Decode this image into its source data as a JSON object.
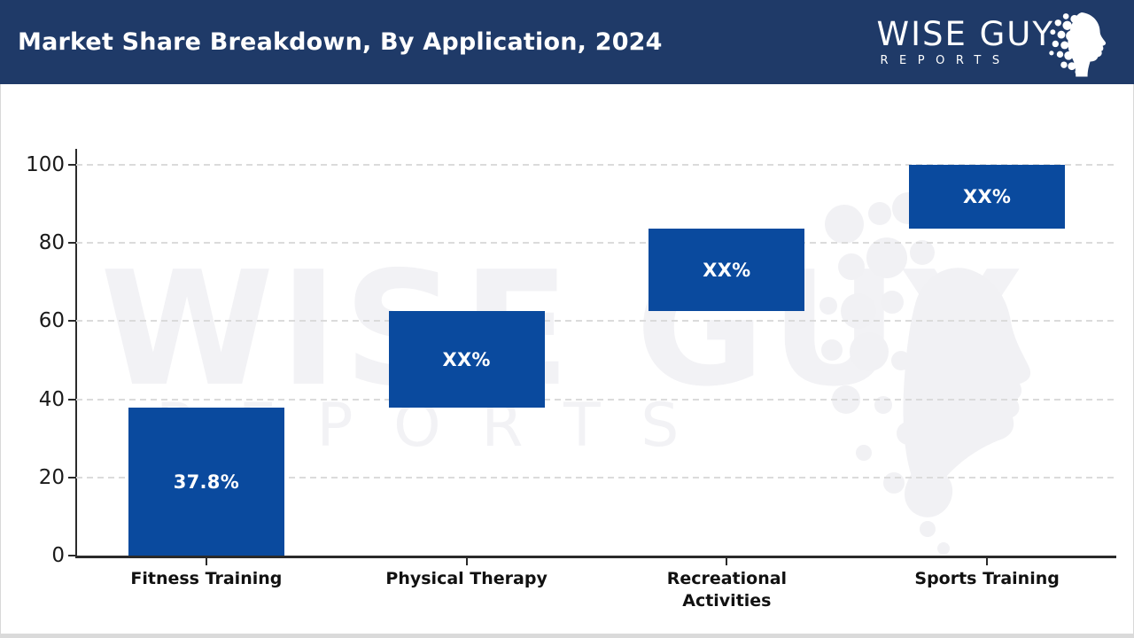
{
  "header": {
    "title": "Market Share Breakdown, By Application, 2024",
    "bg_color": "#1f3a68",
    "logo": {
      "line1": "WISE GUY",
      "line2": "REPORTS"
    }
  },
  "watermark": {
    "line1": "WISE GUY",
    "line2": "R E P O R T S"
  },
  "chart_data": {
    "type": "bar",
    "variant": "waterfall-stacked-percentage",
    "title": "Market Share Breakdown, By Application, 2024",
    "categories": [
      "Fitness Training",
      "Physical Therapy",
      "Recreational\nActivities",
      "Sports Training"
    ],
    "segments": [
      {
        "from": 0,
        "to": 37.8
      },
      {
        "from": 37.8,
        "to": 62.6
      },
      {
        "from": 62.6,
        "to": 83.6
      },
      {
        "from": 83.6,
        "to": 100
      }
    ],
    "values_pct": [
      37.8,
      24.8,
      21.0,
      16.4
    ],
    "bar_labels": [
      "37.8%",
      "XX%",
      "XX%",
      "XX%"
    ],
    "ylim": [
      0,
      100
    ],
    "yticks": [
      0,
      20,
      40,
      60,
      80,
      100
    ],
    "grid": "horizontal-dashed",
    "legend": "none",
    "bar_color": "#0a4a9e",
    "bar_label_color": "#ffffff",
    "axis_color": "#2a2a2a",
    "gridline_color": "#dbdbdb"
  }
}
